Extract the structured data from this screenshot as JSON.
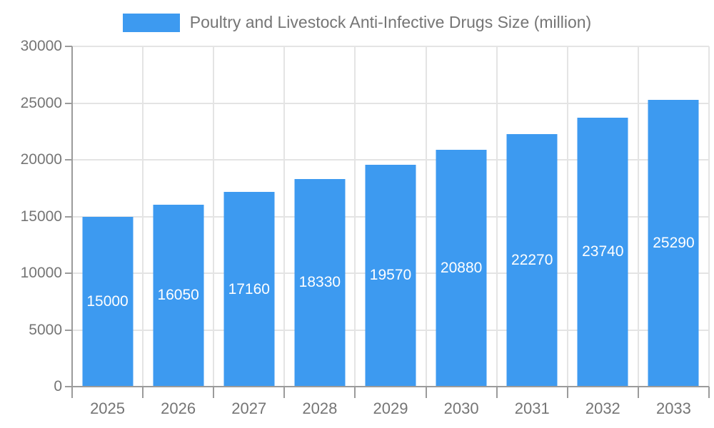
{
  "chart_data": {
    "type": "bar",
    "title": "Poultry and Livestock Anti-Infective Drugs Size (million)",
    "legend": {
      "label": "Poultry and Livestock Anti-Infective Drugs Size (million)",
      "position": "top"
    },
    "categories": [
      "2025",
      "2026",
      "2027",
      "2028",
      "2029",
      "2030",
      "2031",
      "2032",
      "2033"
    ],
    "series": [
      {
        "name": "Poultry and Livestock Anti-Infective Drugs Size (million)",
        "values": [
          15000,
          16050,
          17160,
          18330,
          19570,
          20880,
          22270,
          23740,
          25290
        ]
      }
    ],
    "data_labels": [
      "15000",
      "16050",
      "17160",
      "18330",
      "19570",
      "20880",
      "22270",
      "23740",
      "25290"
    ],
    "xlabel": "",
    "ylabel": "",
    "ylim": [
      0,
      30000
    ],
    "yticks": [
      0,
      5000,
      10000,
      15000,
      20000,
      25000,
      30000
    ],
    "ytick_labels": [
      "0",
      "5000",
      "10000",
      "15000",
      "20000",
      "25000",
      "30000"
    ],
    "grid": true,
    "legend_position": "top",
    "colors": {
      "bar": "#3d9af0",
      "bar_label_text": "#ffffff",
      "axis_line": "#9b9b9b",
      "grid_line": "#e4e4e4",
      "tick_text": "#757575",
      "legend_text": "#757575",
      "background": "#ffffff"
    }
  }
}
